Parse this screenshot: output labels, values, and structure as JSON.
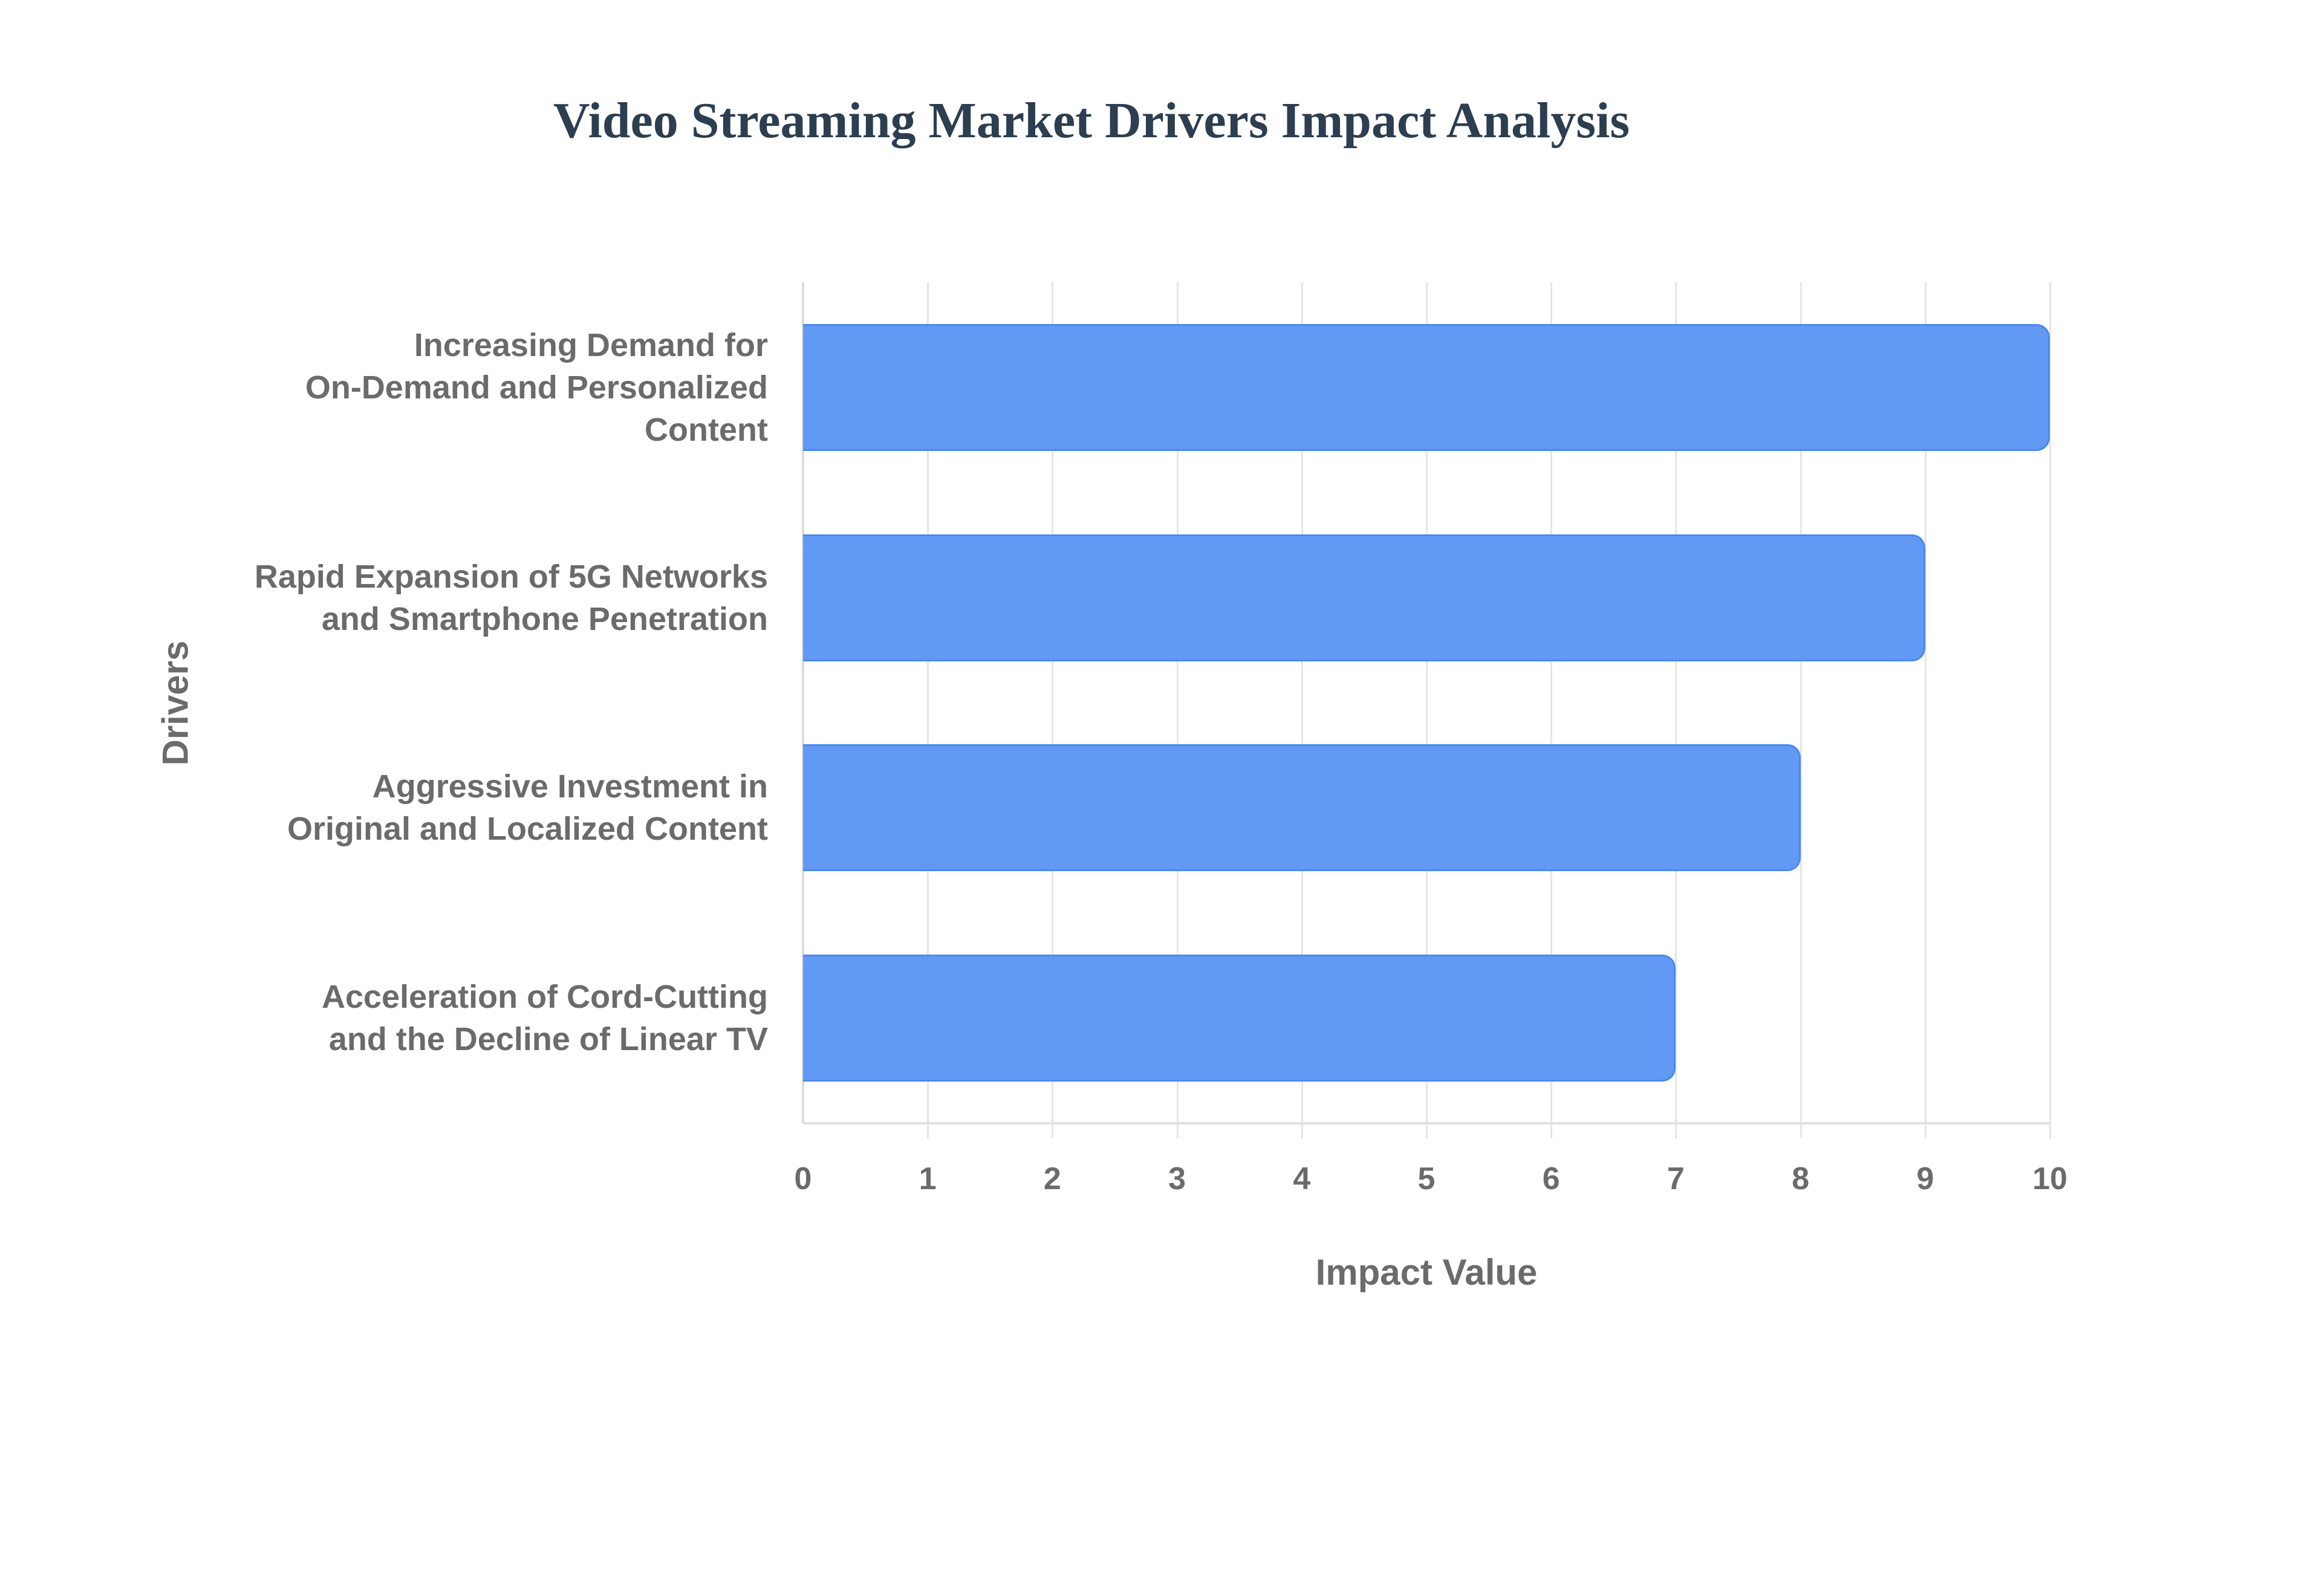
{
  "chart": {
    "title": "Video Streaming Market Drivers Impact Analysis",
    "x_axis_title": "Impact Value",
    "y_axis_title": "Drivers",
    "x_ticks": [
      "0",
      "1",
      "2",
      "3",
      "4",
      "5",
      "6",
      "7",
      "8",
      "9",
      "10"
    ],
    "bars": [
      {
        "label": "Increasing Demand for\nOn-Demand and Personalized\nContent",
        "value": 10
      },
      {
        "label": "Rapid Expansion of 5G Networks\nand Smartphone Penetration",
        "value": 9
      },
      {
        "label": "Aggressive Investment in\nOriginal and Localized Content",
        "value": 8
      },
      {
        "label": "Acceleration of Cord-Cutting\nand the Decline of Linear TV",
        "value": 7
      }
    ],
    "colors": {
      "bar_fill": "#6199f5",
      "bar_border": "#4a88f2",
      "title": "#2c3e50",
      "axis_text": "#6b6b6b"
    }
  },
  "chart_data": {
    "type": "bar",
    "orientation": "horizontal",
    "title": "Video Streaming Market Drivers Impact Analysis",
    "categories": [
      "Increasing Demand for On-Demand and Personalized Content",
      "Rapid Expansion of 5G Networks and Smartphone Penetration",
      "Aggressive Investment in Original and Localized Content",
      "Acceleration of Cord-Cutting and the Decline of Linear TV"
    ],
    "values": [
      10,
      9,
      8,
      7
    ],
    "xlabel": "Impact Value",
    "ylabel": "Drivers",
    "xlim": [
      0,
      10
    ],
    "x_ticks": [
      0,
      1,
      2,
      3,
      4,
      5,
      6,
      7,
      8,
      9,
      10
    ],
    "grid": {
      "vertical": true,
      "horizontal": false
    },
    "legend": null
  }
}
